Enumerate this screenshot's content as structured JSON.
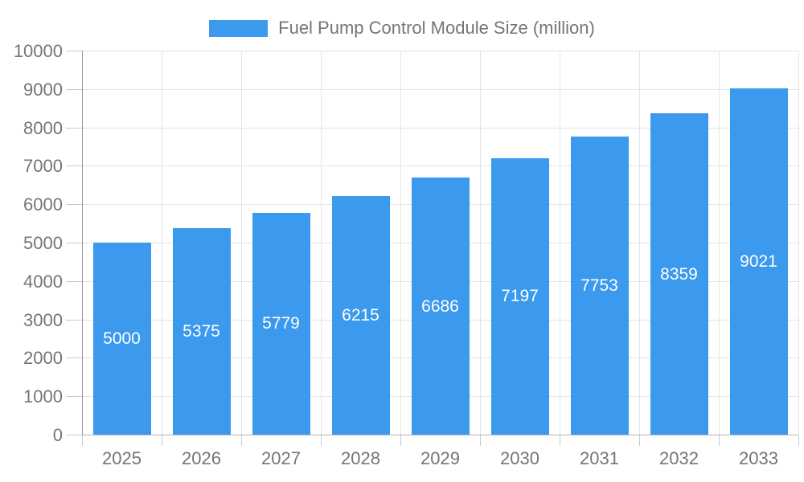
{
  "legend": {
    "label": "Fuel Pump Control Module Size (million)"
  },
  "chart_data": {
    "type": "bar",
    "title": "Fuel Pump Control Module Size (million)",
    "categories": [
      "2025",
      "2026",
      "2027",
      "2028",
      "2029",
      "2030",
      "2031",
      "2032",
      "2033"
    ],
    "values": [
      5000,
      5375,
      5779,
      6215,
      6686,
      7197,
      7753,
      8359,
      9021
    ],
    "series": [
      {
        "name": "Fuel Pump Control Module Size (million)",
        "values": [
          5000,
          5375,
          5779,
          6215,
          6686,
          7197,
          7753,
          8359,
          9021
        ]
      }
    ],
    "xlabel": "",
    "ylabel": "",
    "ylim": [
      0,
      10000
    ],
    "ytick_step": 1000,
    "yticks": [
      0,
      1000,
      2000,
      3000,
      4000,
      5000,
      6000,
      7000,
      8000,
      9000,
      10000
    ],
    "grid": true,
    "legend_position": "top",
    "bar_color": "#3B99EE",
    "bar_label_color": "#FFFFFF",
    "axis_text_color": "#757575"
  }
}
